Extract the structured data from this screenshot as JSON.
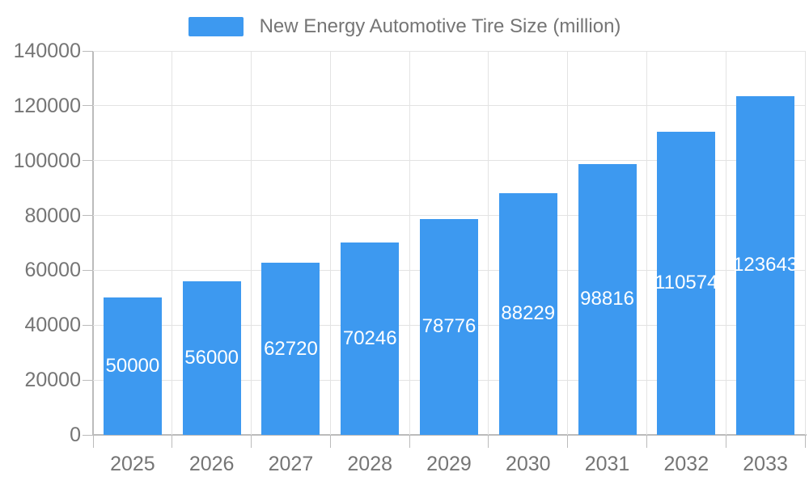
{
  "chart_data": {
    "type": "bar",
    "title": "New Energy Automotive Tire Size (million)",
    "legend": {
      "label": "New Energy Automotive Tire Size (million)",
      "position": "top-center"
    },
    "categories": [
      "2025",
      "2026",
      "2027",
      "2028",
      "2029",
      "2030",
      "2031",
      "2032",
      "2033"
    ],
    "values": [
      50000,
      56000,
      62720,
      70246,
      78776,
      88229,
      98816,
      110574,
      123643
    ],
    "value_labels": [
      "50000",
      "56000",
      "62720",
      "70246",
      "78776",
      "88229",
      "98816",
      "110574",
      "123643"
    ],
    "xlabel": "",
    "ylabel": "",
    "ylim": [
      0,
      140000
    ],
    "yticks": [
      0,
      20000,
      40000,
      60000,
      80000,
      100000,
      120000,
      140000
    ],
    "ytick_labels": [
      "0",
      "20000",
      "40000",
      "60000",
      "80000",
      "100000",
      "120000",
      "140000"
    ],
    "grid": "horizontal and vertical category boundaries",
    "bar_label_position": "inside-center",
    "colors": {
      "bar": "#3D99F0",
      "axis_text": "#757575",
      "bar_label_text": "#FFFFFF",
      "gridline": "#E3E3E3",
      "axis_line": "#BBBBBB",
      "background": "#FFFFFF"
    }
  }
}
